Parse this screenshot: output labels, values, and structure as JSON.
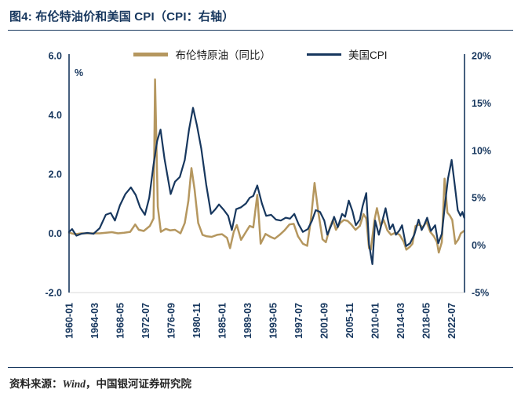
{
  "title": "图4:  布伦特油价和美国 CPI（CPI：右轴）",
  "colors": {
    "navy": "#17375e",
    "brent_tan": "#b5975f",
    "baseline_gray": "#d9d9d9"
  },
  "legend": [
    {
      "label": "布伦特原油（同比）",
      "color": "#b5975f"
    },
    {
      "label": "美国CPI",
      "color": "#17375e"
    }
  ],
  "source": {
    "prefix": "资料来源：",
    "wind": "Wind",
    "suffix": "，中国银河证券研究院"
  },
  "chart_data": {
    "type": "line",
    "title": "布伦特油价和美国 CPI（CPI：右轴）",
    "grid": false,
    "legend_position": "top-center",
    "x_range": [
      1960,
      2024.6
    ],
    "left_axis": {
      "label": "%",
      "lim": [
        -2,
        6
      ],
      "ticks": [
        6,
        4,
        2,
        0,
        -2
      ]
    },
    "right_axis": {
      "lim": [
        -5,
        20
      ],
      "ticks": [
        20,
        15,
        10,
        5,
        0,
        -5
      ]
    },
    "x_tick_labels": [
      "1960-01",
      "1964-03",
      "1968-05",
      "1972-07",
      "1976-09",
      "1980-11",
      "1985-01",
      "1989-03",
      "1993-05",
      "1997-07",
      "2001-09",
      "2005-11",
      "2010-01",
      "2014-03",
      "2018-05",
      "2022-07"
    ],
    "series": [
      {
        "name": "布伦特原油（同比）",
        "axis": "left",
        "color": "#b5975f",
        "width": 2.5,
        "points": [
          [
            1960,
            0.02
          ],
          [
            1961,
            -0.03
          ],
          [
            1962,
            0.0
          ],
          [
            1963,
            0.0
          ],
          [
            1964,
            0.0
          ],
          [
            1965,
            0.0
          ],
          [
            1966,
            0.02
          ],
          [
            1967,
            0.04
          ],
          [
            1968,
            0.0
          ],
          [
            1969,
            0.02
          ],
          [
            1970,
            0.05
          ],
          [
            1970.8,
            0.3
          ],
          [
            1971.4,
            0.12
          ],
          [
            1972.2,
            0.08
          ],
          [
            1973.2,
            0.25
          ],
          [
            1973.8,
            0.5
          ],
          [
            1974.05,
            5.2
          ],
          [
            1974.5,
            0.9
          ],
          [
            1975,
            0.05
          ],
          [
            1975.8,
            0.15
          ],
          [
            1976.5,
            0.1
          ],
          [
            1977.3,
            0.12
          ],
          [
            1978.2,
            0.0
          ],
          [
            1978.9,
            0.35
          ],
          [
            1979.5,
            1.1
          ],
          [
            1980.0,
            2.2
          ],
          [
            1980.5,
            1.5
          ],
          [
            1981.1,
            0.35
          ],
          [
            1981.8,
            -0.05
          ],
          [
            1982.5,
            -0.1
          ],
          [
            1983.3,
            -0.12
          ],
          [
            1984.2,
            -0.05
          ],
          [
            1985.0,
            -0.03
          ],
          [
            1985.8,
            -0.15
          ],
          [
            1986.3,
            -0.5
          ],
          [
            1986.9,
            0.05
          ],
          [
            1987.4,
            0.28
          ],
          [
            1988.1,
            -0.22
          ],
          [
            1988.9,
            0.05
          ],
          [
            1989.5,
            0.25
          ],
          [
            1990.1,
            0.2
          ],
          [
            1990.75,
            1.3
          ],
          [
            1991.3,
            -0.35
          ],
          [
            1992.1,
            -0.02
          ],
          [
            1992.9,
            -0.12
          ],
          [
            1993.6,
            -0.18
          ],
          [
            1994.4,
            -0.05
          ],
          [
            1995.2,
            0.1
          ],
          [
            1996.0,
            0.3
          ],
          [
            1996.7,
            0.32
          ],
          [
            1997.4,
            -0.1
          ],
          [
            1998.2,
            -0.35
          ],
          [
            1998.9,
            -0.42
          ],
          [
            1999.5,
            0.45
          ],
          [
            2000.1,
            1.7
          ],
          [
            2000.7,
            0.75
          ],
          [
            2001.4,
            -0.2
          ],
          [
            2001.95,
            -0.3
          ],
          [
            2002.6,
            0.2
          ],
          [
            2003.1,
            0.45
          ],
          [
            2003.6,
            0.12
          ],
          [
            2004.3,
            0.35
          ],
          [
            2004.9,
            0.45
          ],
          [
            2005.5,
            0.42
          ],
          [
            2006.1,
            0.3
          ],
          [
            2006.8,
            0.12
          ],
          [
            2007.5,
            0.25
          ],
          [
            2008.1,
            0.65
          ],
          [
            2008.55,
            0.5
          ],
          [
            2009.0,
            -0.5
          ],
          [
            2009.3,
            -0.55
          ],
          [
            2009.9,
            0.45
          ],
          [
            2010.3,
            0.85
          ],
          [
            2010.9,
            0.25
          ],
          [
            2011.4,
            0.45
          ],
          [
            2012.0,
            0.1
          ],
          [
            2012.6,
            -0.05
          ],
          [
            2013.3,
            0.02
          ],
          [
            2014.0,
            -0.05
          ],
          [
            2014.7,
            -0.3
          ],
          [
            2015.1,
            -0.55
          ],
          [
            2015.7,
            -0.45
          ],
          [
            2016.1,
            -0.35
          ],
          [
            2016.6,
            0.25
          ],
          [
            2017.2,
            0.3
          ],
          [
            2017.8,
            0.2
          ],
          [
            2018.4,
            0.4
          ],
          [
            2019.0,
            0.05
          ],
          [
            2019.6,
            -0.1
          ],
          [
            2020.1,
            -0.3
          ],
          [
            2020.4,
            -0.65
          ],
          [
            2020.9,
            -0.3
          ],
          [
            2021.35,
            1.85
          ],
          [
            2021.8,
            0.7
          ],
          [
            2022.2,
            0.6
          ],
          [
            2022.6,
            0.45
          ],
          [
            2023.1,
            -0.35
          ],
          [
            2023.6,
            -0.2
          ],
          [
            2024.0,
            0.0
          ],
          [
            2024.5,
            0.08
          ]
        ]
      },
      {
        "name": "美国CPI",
        "axis": "right",
        "color": "#17375e",
        "width": 2.2,
        "points": [
          [
            1960,
            1.4
          ],
          [
            1960.5,
            1.7
          ],
          [
            1961.2,
            1.0
          ],
          [
            1962,
            1.2
          ],
          [
            1963,
            1.3
          ],
          [
            1964,
            1.2
          ],
          [
            1965,
            1.8
          ],
          [
            1966,
            3.2
          ],
          [
            1966.8,
            3.4
          ],
          [
            1967.5,
            2.6
          ],
          [
            1968.3,
            4.2
          ],
          [
            1969.2,
            5.4
          ],
          [
            1970.1,
            6.1
          ],
          [
            1970.9,
            5.3
          ],
          [
            1971.6,
            4.0
          ],
          [
            1972.4,
            3.2
          ],
          [
            1973.1,
            5.0
          ],
          [
            1973.8,
            8.5
          ],
          [
            1974.4,
            11.0
          ],
          [
            1974.95,
            12.2
          ],
          [
            1975.6,
            9.1
          ],
          [
            1976.6,
            5.4
          ],
          [
            1977.3,
            6.7
          ],
          [
            1978.1,
            7.2
          ],
          [
            1978.9,
            9.0
          ],
          [
            1979.6,
            12.2
          ],
          [
            1980.25,
            14.5
          ],
          [
            1980.9,
            12.6
          ],
          [
            1981.6,
            10.2
          ],
          [
            1982.4,
            6.4
          ],
          [
            1983.2,
            3.3
          ],
          [
            1983.9,
            3.8
          ],
          [
            1984.5,
            4.3
          ],
          [
            1985.3,
            3.7
          ],
          [
            1986.0,
            3.1
          ],
          [
            1986.6,
            1.6
          ],
          [
            1987.3,
            3.8
          ],
          [
            1988.1,
            4.0
          ],
          [
            1988.9,
            4.4
          ],
          [
            1989.5,
            5.0
          ],
          [
            1990.1,
            5.2
          ],
          [
            1990.75,
            6.3
          ],
          [
            1991.5,
            4.4
          ],
          [
            1992.2,
            3.1
          ],
          [
            1993.0,
            3.2
          ],
          [
            1993.8,
            2.7
          ],
          [
            1994.6,
            2.6
          ],
          [
            1995.4,
            2.9
          ],
          [
            1996.1,
            2.8
          ],
          [
            1996.8,
            3.3
          ],
          [
            1997.5,
            2.2
          ],
          [
            1998.2,
            1.4
          ],
          [
            1999.0,
            1.7
          ],
          [
            1999.7,
            2.6
          ],
          [
            2000.3,
            3.7
          ],
          [
            2001.0,
            3.5
          ],
          [
            2001.7,
            2.6
          ],
          [
            2002.2,
            1.1
          ],
          [
            2002.9,
            2.2
          ],
          [
            2003.3,
            3.0
          ],
          [
            2003.9,
            1.9
          ],
          [
            2004.6,
            3.3
          ],
          [
            2005.1,
            3.0
          ],
          [
            2005.7,
            4.7
          ],
          [
            2006.3,
            3.6
          ],
          [
            2006.85,
            2.1
          ],
          [
            2007.5,
            2.7
          ],
          [
            2007.95,
            4.1
          ],
          [
            2008.55,
            5.5
          ],
          [
            2009.0,
            0.1
          ],
          [
            2009.55,
            -2.0
          ],
          [
            2010.0,
            2.6
          ],
          [
            2010.6,
            1.1
          ],
          [
            2011.0,
            2.1
          ],
          [
            2011.7,
            3.9
          ],
          [
            2012.4,
            1.7
          ],
          [
            2012.9,
            2.2
          ],
          [
            2013.4,
            1.1
          ],
          [
            2014.0,
            1.6
          ],
          [
            2014.4,
            2.1
          ],
          [
            2015.05,
            -0.1
          ],
          [
            2015.7,
            0.2
          ],
          [
            2016.4,
            1.1
          ],
          [
            2017.1,
            2.7
          ],
          [
            2017.6,
            1.6
          ],
          [
            2018.0,
            2.1
          ],
          [
            2018.5,
            2.9
          ],
          [
            2019.1,
            1.5
          ],
          [
            2019.8,
            2.1
          ],
          [
            2020.3,
            0.2
          ],
          [
            2020.9,
            1.2
          ],
          [
            2021.4,
            4.2
          ],
          [
            2021.9,
            7.0
          ],
          [
            2022.5,
            9.0
          ],
          [
            2023.0,
            6.4
          ],
          [
            2023.5,
            3.7
          ],
          [
            2023.95,
            3.1
          ],
          [
            2024.25,
            3.5
          ],
          [
            2024.55,
            2.9
          ]
        ]
      }
    ]
  }
}
